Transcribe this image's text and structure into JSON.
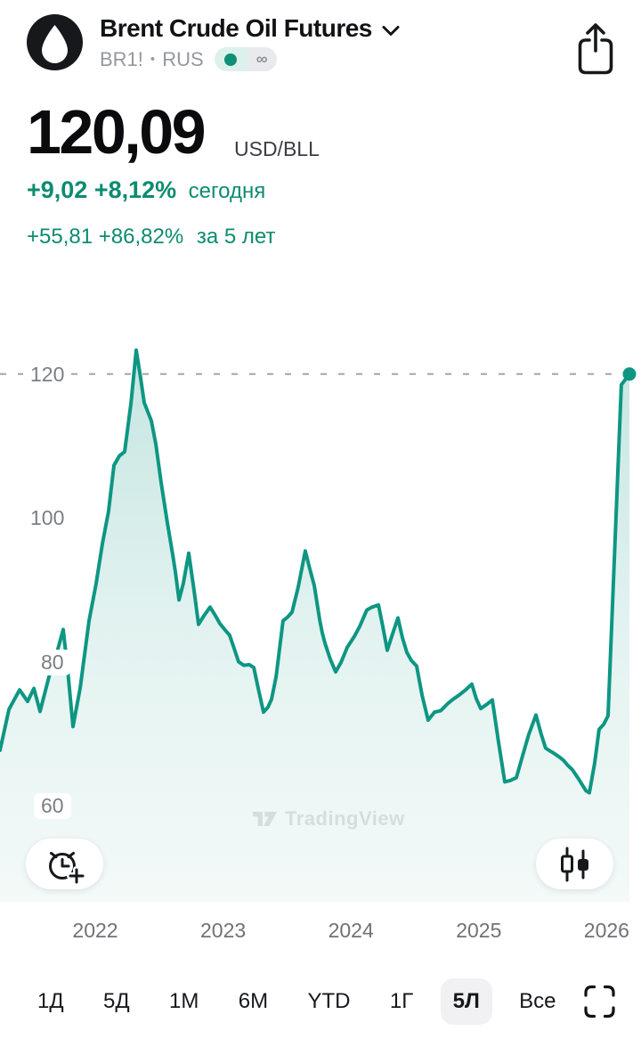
{
  "header": {
    "title": "Brent Crude Oil Futures",
    "symbol": "BR1!",
    "separator": "•",
    "exchange": "RUS",
    "infinity_label": "∞"
  },
  "price": {
    "value": "120,09",
    "unit": "USD/BLL",
    "change_today": "+9,02 +8,12%",
    "change_today_period": "сегодня",
    "change_5y": "+55,81 +86,82%",
    "change_5y_period": "за 5 лет"
  },
  "watermark": {
    "text": "TradingView"
  },
  "chart_data": {
    "type": "area",
    "unit": "USD/BLL",
    "current_price": 120.09,
    "dashed_line_level": 120.09,
    "ylim": [
      58,
      126
    ],
    "y_ticks": [
      120,
      100,
      80,
      60
    ],
    "x_ticks": [
      2022,
      2023,
      2024,
      2025,
      2026
    ],
    "grid": "off",
    "legend": "none",
    "accent_color": "#0E9683",
    "points": [
      [
        2021.255,
        67.8
      ],
      [
        2021.325,
        73.5
      ],
      [
        2021.408,
        76.2
      ],
      [
        2021.471,
        74.6
      ],
      [
        2021.52,
        76.4
      ],
      [
        2021.568,
        73.2
      ],
      [
        2021.638,
        78.0
      ],
      [
        2021.694,
        81.0
      ],
      [
        2021.749,
        84.6
      ],
      [
        2021.784,
        79.0
      ],
      [
        2021.826,
        71.1
      ],
      [
        2021.882,
        76.5
      ],
      [
        2021.951,
        85.8
      ],
      [
        2022.007,
        91.0
      ],
      [
        2022.056,
        96.5
      ],
      [
        2022.104,
        101.0
      ],
      [
        2022.146,
        107.4
      ],
      [
        2022.188,
        108.7
      ],
      [
        2022.23,
        109.3
      ],
      [
        2022.279,
        116.0
      ],
      [
        2022.32,
        123.4
      ],
      [
        2022.355,
        119.5
      ],
      [
        2022.383,
        116.1
      ],
      [
        2022.439,
        113.6
      ],
      [
        2022.474,
        110.3
      ],
      [
        2022.515,
        105.0
      ],
      [
        2022.564,
        99.4
      ],
      [
        2022.606,
        95.0
      ],
      [
        2022.627,
        92.6
      ],
      [
        2022.655,
        88.7
      ],
      [
        2022.689,
        91.0
      ],
      [
        2022.731,
        95.2
      ],
      [
        2022.773,
        90.0
      ],
      [
        2022.808,
        85.3
      ],
      [
        2022.85,
        86.5
      ],
      [
        2022.898,
        87.7
      ],
      [
        2022.94,
        86.5
      ],
      [
        2022.975,
        85.4
      ],
      [
        2023.017,
        84.5
      ],
      [
        2023.051,
        83.8
      ],
      [
        2023.086,
        82.0
      ],
      [
        2023.121,
        80.1
      ],
      [
        2023.163,
        79.6
      ],
      [
        2023.205,
        79.7
      ],
      [
        2023.24,
        79.3
      ],
      [
        2023.274,
        76.5
      ],
      [
        2023.316,
        73.1
      ],
      [
        2023.351,
        73.8
      ],
      [
        2023.379,
        74.9
      ],
      [
        2023.414,
        78.0
      ],
      [
        2023.469,
        85.8
      ],
      [
        2023.504,
        86.3
      ],
      [
        2023.539,
        87.0
      ],
      [
        2023.588,
        90.5
      ],
      [
        2023.643,
        95.5
      ],
      [
        2023.678,
        93.0
      ],
      [
        2023.713,
        90.7
      ],
      [
        2023.755,
        86.0
      ],
      [
        2023.776,
        84.1
      ],
      [
        2023.797,
        82.7
      ],
      [
        2023.838,
        80.5
      ],
      [
        2023.88,
        78.7
      ],
      [
        2023.922,
        80.0
      ],
      [
        2023.971,
        82.1
      ],
      [
        2024.026,
        83.6
      ],
      [
        2024.068,
        85.0
      ],
      [
        2024.124,
        87.3
      ],
      [
        2024.166,
        87.7
      ],
      [
        2024.215,
        88.0
      ],
      [
        2024.249,
        85.0
      ],
      [
        2024.284,
        81.7
      ],
      [
        2024.326,
        84.0
      ],
      [
        2024.368,
        86.2
      ],
      [
        2024.402,
        83.5
      ],
      [
        2024.437,
        81.4
      ],
      [
        2024.472,
        80.3
      ],
      [
        2024.514,
        79.5
      ],
      [
        2024.556,
        75.5
      ],
      [
        2024.604,
        72.0
      ],
      [
        2024.653,
        73.1
      ],
      [
        2024.702,
        73.3
      ],
      [
        2024.758,
        74.3
      ],
      [
        2024.799,
        74.9
      ],
      [
        2024.848,
        75.5
      ],
      [
        2024.897,
        76.2
      ],
      [
        2024.946,
        77.0
      ],
      [
        2024.98,
        75.0
      ],
      [
        2025.015,
        73.6
      ],
      [
        2025.064,
        74.2
      ],
      [
        2025.106,
        74.8
      ],
      [
        2025.154,
        69.0
      ],
      [
        2025.203,
        63.4
      ],
      [
        2025.245,
        63.6
      ],
      [
        2025.294,
        64.0
      ],
      [
        2025.342,
        67.0
      ],
      [
        2025.391,
        70.0
      ],
      [
        2025.447,
        72.7
      ],
      [
        2025.489,
        70.0
      ],
      [
        2025.523,
        68.1
      ],
      [
        2025.558,
        67.7
      ],
      [
        2025.586,
        67.4
      ],
      [
        2025.628,
        66.9
      ],
      [
        2025.663,
        66.4
      ],
      [
        2025.697,
        65.7
      ],
      [
        2025.732,
        65.1
      ],
      [
        2025.781,
        63.8
      ],
      [
        2025.837,
        62.2
      ],
      [
        2025.865,
        61.9
      ],
      [
        2025.906,
        66.0
      ],
      [
        2025.941,
        70.7
      ],
      [
        2025.976,
        71.4
      ],
      [
        2026.011,
        72.6
      ],
      [
        2026.115,
        118.6
      ],
      [
        2026.178,
        120.09
      ]
    ]
  },
  "timeframes": {
    "items": [
      "1Д",
      "5Д",
      "1М",
      "6М",
      "YTD",
      "1Г",
      "5Л",
      "Все"
    ],
    "selected": "5Л"
  },
  "colors": {
    "accent": "#0E9683",
    "change_text": "#0D8B70",
    "axis_text": "#7B7E86",
    "dashed_line": "#A3A5AA"
  }
}
